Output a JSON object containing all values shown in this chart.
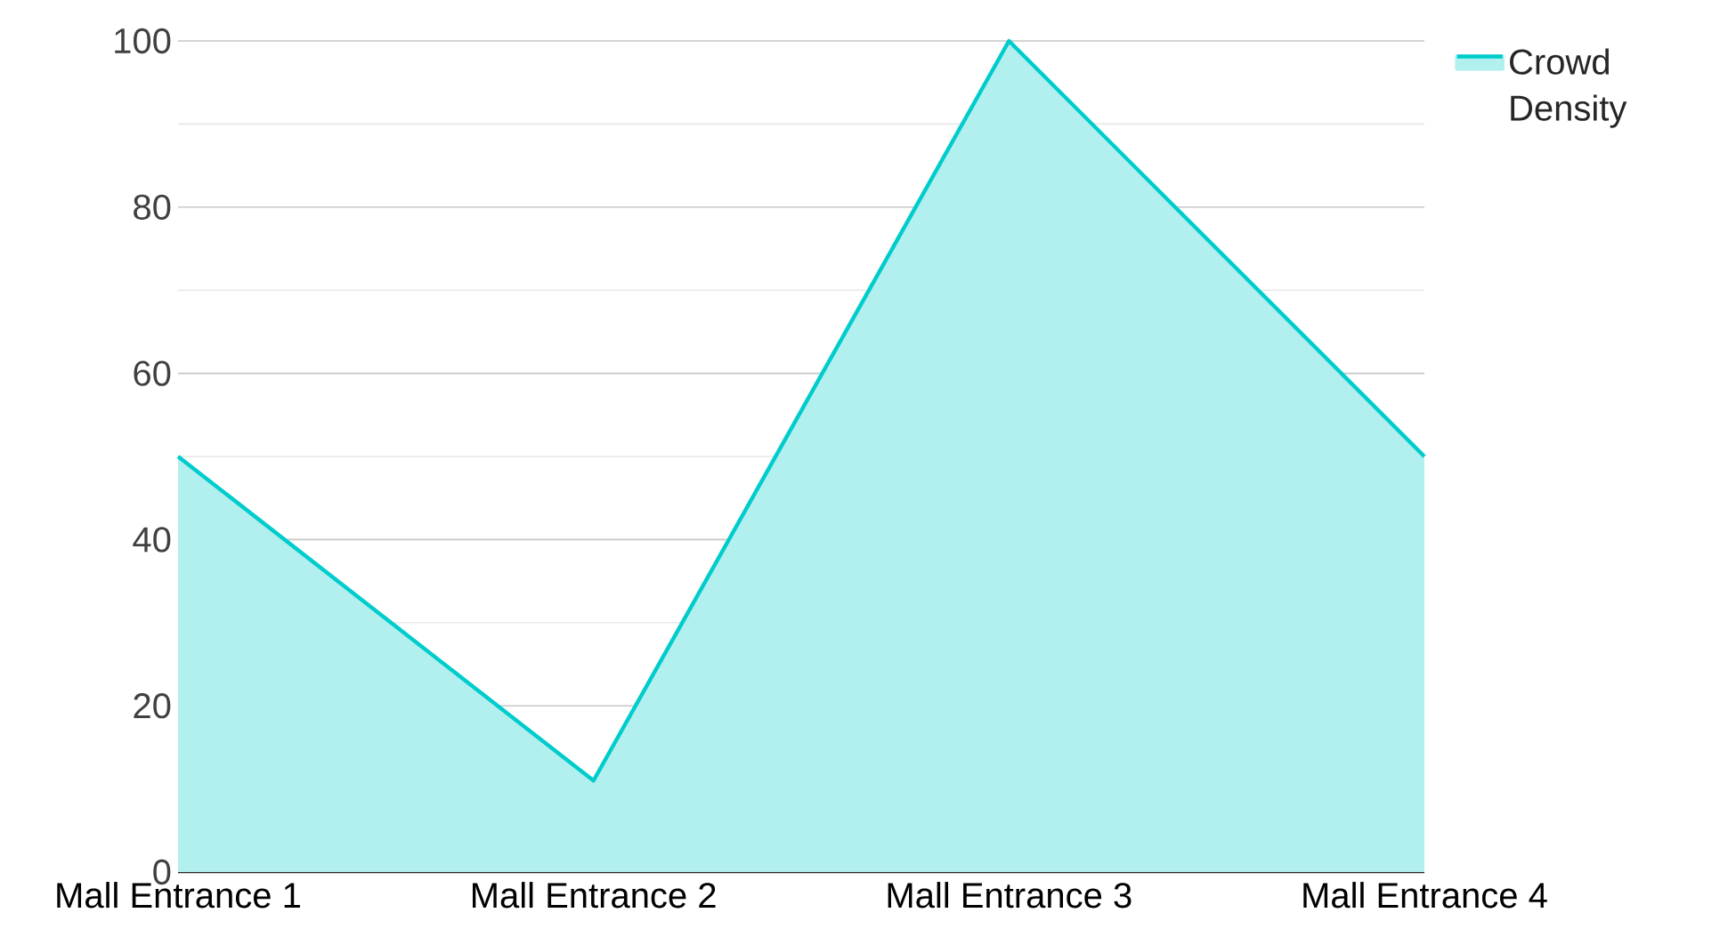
{
  "chart_data": {
    "type": "area",
    "categories": [
      "Mall Entrance 1",
      "Mall Entrance 2",
      "Mall Entrance 3",
      "Mall Entrance 4"
    ],
    "series": [
      {
        "name": "Crowd Density",
        "color": "#00cccc",
        "values": [
          50,
          11,
          100,
          50
        ]
      }
    ],
    "ylim": [
      0,
      100
    ],
    "yticks": [
      0,
      {
        "value": 10,
        "label": null
      },
      20,
      {
        "value": 30,
        "label": null
      },
      40,
      {
        "value": 50,
        "label": null
      },
      60,
      {
        "value": 70,
        "label": null
      },
      80,
      {
        "value": 90,
        "label": null
      },
      100
    ],
    "grid": "y",
    "legend": "top right"
  }
}
